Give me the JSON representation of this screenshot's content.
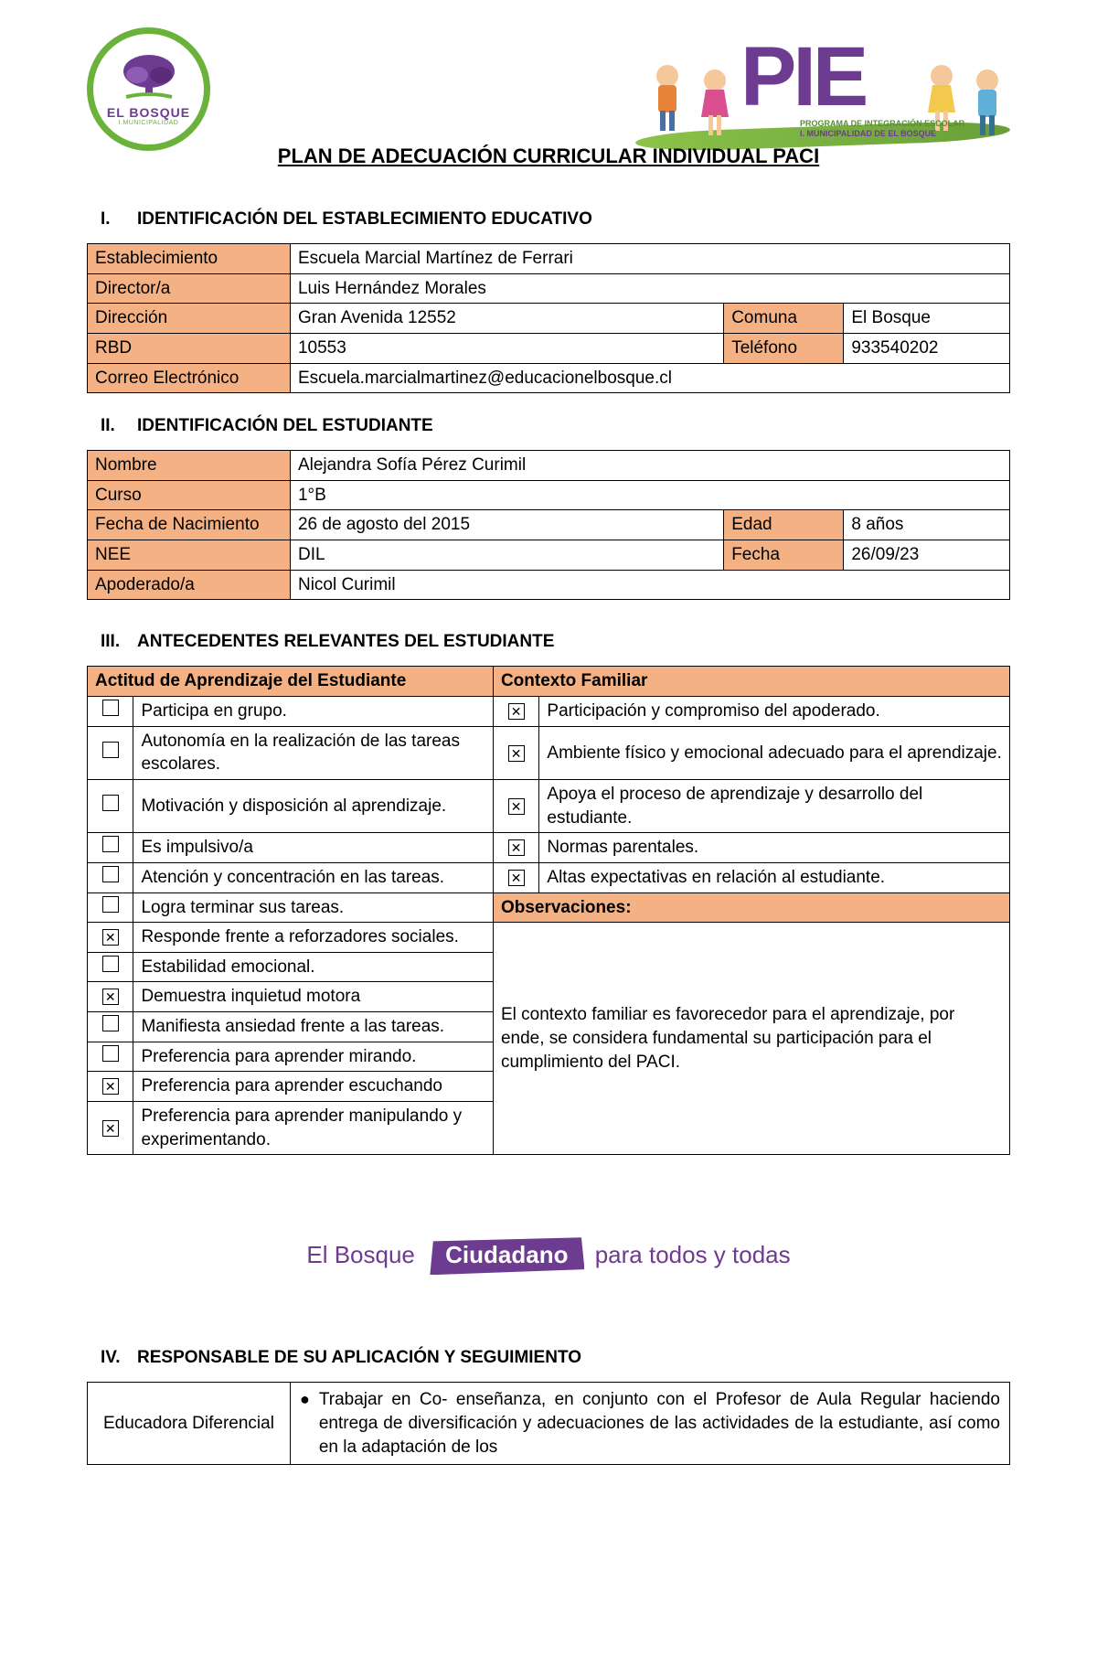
{
  "colors": {
    "header_bg": "#f4b183",
    "border": "#000000",
    "brand_purple": "#6d3b8f",
    "brand_green": "#6ab23a",
    "text": "#000000",
    "page_bg": "#ffffff"
  },
  "typography": {
    "base_family": "Arial",
    "base_size_pt": 14,
    "title_size_pt": 16,
    "title_weight": "bold"
  },
  "logos": {
    "left": {
      "line1": "EL BOSQUE",
      "line2": "I.MUNICIPALIDAD"
    },
    "right": {
      "big": "PIE",
      "sub1": "PROGRAMA DE INTEGRACIÓN ESCOLAR",
      "sub2": "I. MUNICIPALIDAD DE EL BOSQUE"
    }
  },
  "title": "PLAN DE ADECUACIÓN CURRICULAR INDIVIDUAL PACI",
  "sections": {
    "s1": {
      "num": "I.",
      "title": "IDENTIFICACIÓN DEL ESTABLECIMIENTO EDUCATIVO"
    },
    "s2": {
      "num": "II.",
      "title": "IDENTIFICACIÓN DEL ESTUDIANTE"
    },
    "s3": {
      "num": "III.",
      "title": "ANTECEDENTES RELEVANTES DEL ESTUDIANTE"
    },
    "s4": {
      "num": "IV.",
      "title": "RESPONSABLE DE SU APLICACIÓN Y SEGUIMIENTO"
    }
  },
  "t1": {
    "col_widths_pct": [
      22,
      47,
      13,
      18
    ],
    "r1": {
      "l": "Establecimiento",
      "v": "Escuela Marcial Martínez de Ferrari"
    },
    "r2": {
      "l": "Director/a",
      "v": "Luis Hernández Morales"
    },
    "r3": {
      "l": "Dirección",
      "v": "Gran Avenida 12552",
      "l2": "Comuna",
      "v2": "El Bosque"
    },
    "r4": {
      "l": "RBD",
      "v": "10553",
      "l2": "Teléfono",
      "v2": "933540202"
    },
    "r5": {
      "l": "Correo Electrónico",
      "v": "Escuela.marcialmartinez@educacionelbosque.cl"
    }
  },
  "t2": {
    "col_widths_pct": [
      22,
      47,
      13,
      18
    ],
    "r1": {
      "l": "Nombre",
      "v": "Alejandra Sofía Pérez Curimil"
    },
    "r2": {
      "l": "Curso",
      "v": "1°B"
    },
    "r3": {
      "l": "Fecha de Nacimiento",
      "v": "26 de agosto del 2015",
      "l2": "Edad",
      "v2": "8 años"
    },
    "r4": {
      "l": "NEE",
      "v": "DIL",
      "l2": "Fecha",
      "v2": "26/09/23"
    },
    "r5": {
      "l": "Apoderado/a",
      "v": "Nicol Curimil"
    }
  },
  "t3": {
    "col_widths_pct": [
      5,
      39,
      5,
      51
    ],
    "h1": "Actitud de Aprendizaje del Estudiante",
    "h2": "Contexto Familiar",
    "h3": "Observaciones:",
    "left": [
      {
        "chk": false,
        "txt": "Participa en grupo."
      },
      {
        "chk": false,
        "txt": "Autonomía en la realización de las tareas escolares."
      },
      {
        "chk": false,
        "txt": "Motivación y disposición al aprendizaje."
      },
      {
        "chk": false,
        "txt": "Es impulsivo/a"
      },
      {
        "chk": false,
        "txt": "Atención y concentración en las tareas."
      },
      {
        "chk": false,
        "txt": "Logra terminar sus tareas."
      },
      {
        "chk": true,
        "txt": "Responde frente a reforzadores sociales."
      },
      {
        "chk": false,
        "txt": "Estabilidad emocional."
      },
      {
        "chk": true,
        "txt": "Demuestra inquietud motora"
      },
      {
        "chk": false,
        "txt": "Manifiesta ansiedad frente a las tareas."
      },
      {
        "chk": false,
        "txt": "Preferencia para aprender mirando."
      },
      {
        "chk": true,
        "txt": "Preferencia para aprender escuchando"
      },
      {
        "chk": true,
        "txt": "Preferencia para aprender manipulando y experimentando."
      }
    ],
    "right": [
      {
        "chk": true,
        "txt": "Participación y compromiso del apoderado."
      },
      {
        "chk": true,
        "txt": "Ambiente físico y emocional adecuado para el aprendizaje."
      },
      {
        "chk": true,
        "txt": "Apoya el proceso de aprendizaje y desarrollo del estudiante."
      },
      {
        "chk": true,
        "txt": "Normas parentales."
      },
      {
        "chk": true,
        "txt": "Altas expectativas en relación al estudiante."
      }
    ],
    "obs": "El contexto familiar es favorecedor para el aprendizaje, por ende, se considera fundamental su participación para el cumplimiento del PACI."
  },
  "slogan": {
    "pre": "El Bosque",
    "mid": "Ciudadano",
    "post": "para todos y todas"
  },
  "t4": {
    "col_widths_pct": [
      22,
      78
    ],
    "role": "Educadora Diferencial",
    "bullet": "Trabajar en Co- enseñanza, en conjunto con el Profesor de Aula Regular haciendo entrega de diversificación y adecuaciones de las actividades de la estudiante, así como en la adaptación de los"
  }
}
